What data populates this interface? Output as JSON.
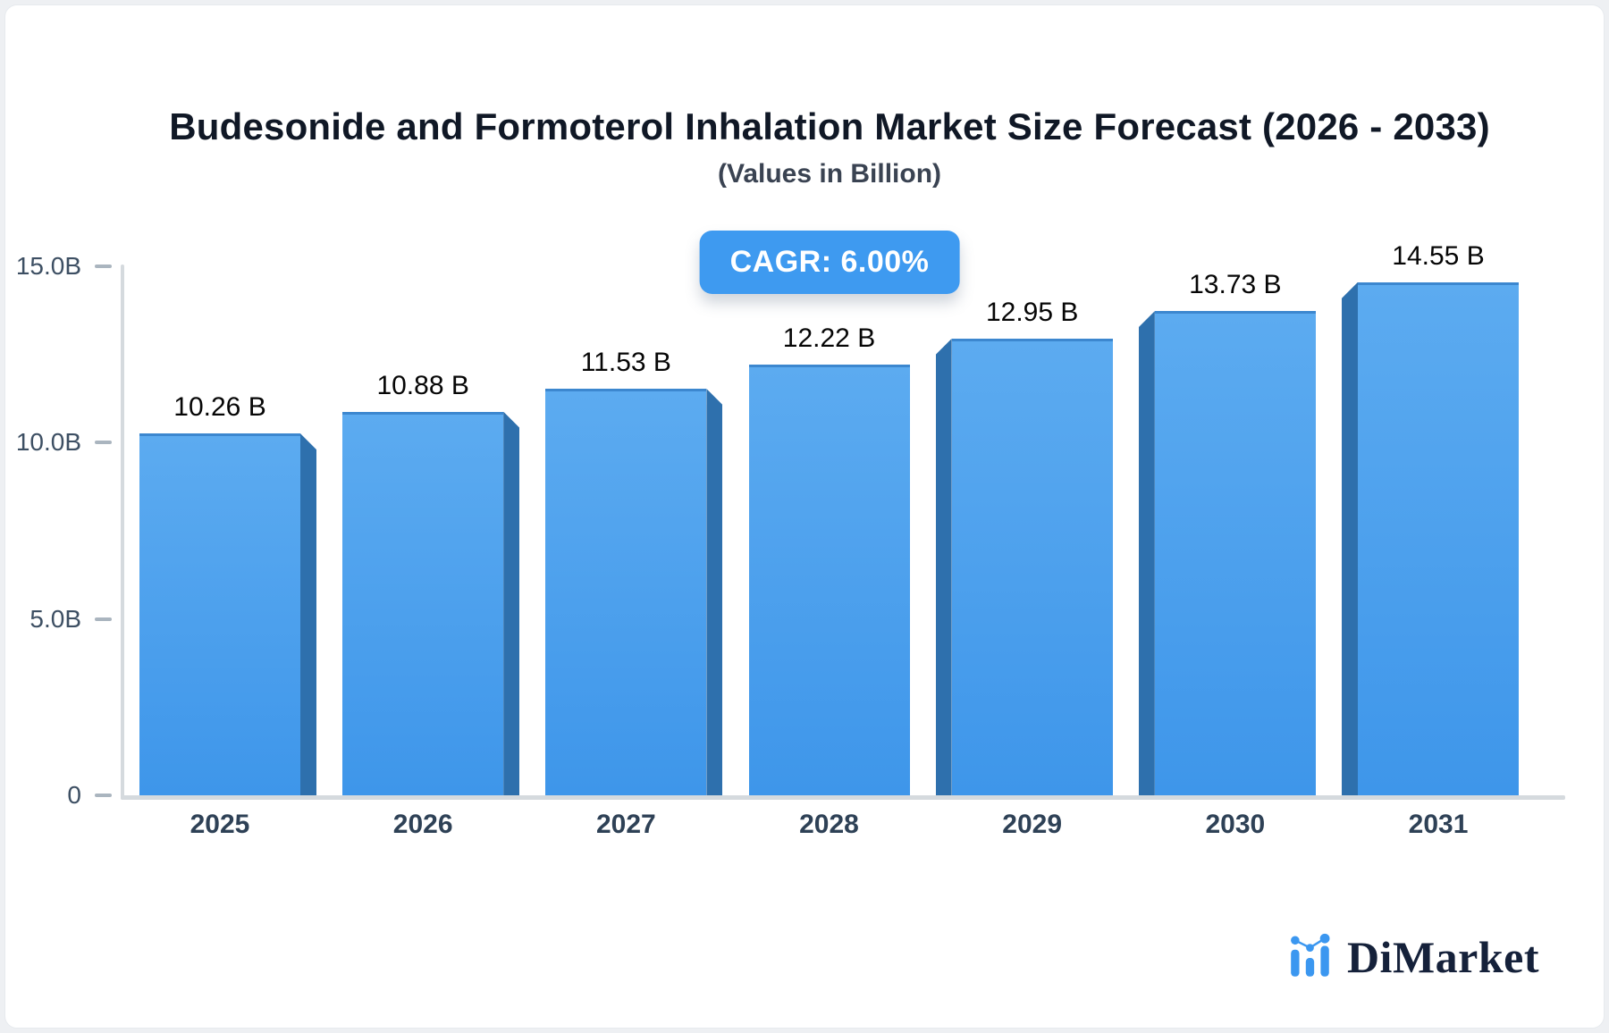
{
  "title": "Budesonide and Formoterol Inhalation Market Size Forecast (2026 - 2033)",
  "subtitle": "(Values in Billion)",
  "badge": {
    "label": "CAGR: 6.00%"
  },
  "chart_data": {
    "type": "bar",
    "categories": [
      "2025",
      "2026",
      "2027",
      "2028",
      "2029",
      "2030",
      "2031"
    ],
    "values": [
      10.26,
      10.88,
      11.53,
      12.22,
      12.95,
      13.73,
      14.55
    ],
    "value_labels": [
      "10.26 B",
      "10.88 B",
      "11.53 B",
      "12.22 B",
      "12.95 B",
      "13.73 B",
      "14.55 B"
    ],
    "y_ticks": [
      "15.0B",
      "10.0B",
      "5.0B",
      "0"
    ],
    "y_tick_values": [
      15,
      10,
      5,
      0
    ],
    "ylim": [
      0,
      15
    ],
    "grid": false,
    "legend": false,
    "bar_gradient_top": "#5cabf0",
    "bar_gradient_bottom": "#3e96ea",
    "bar_side_color": "#2e70ad",
    "bar_edge_color": "#3c87cf",
    "axis_color": "#d5dade",
    "tick_label_color": "#3d4f63"
  },
  "logo": {
    "text": "DiMarket",
    "icon": "bar-chart-logo-icon",
    "accent_color": "#3b97f0"
  }
}
